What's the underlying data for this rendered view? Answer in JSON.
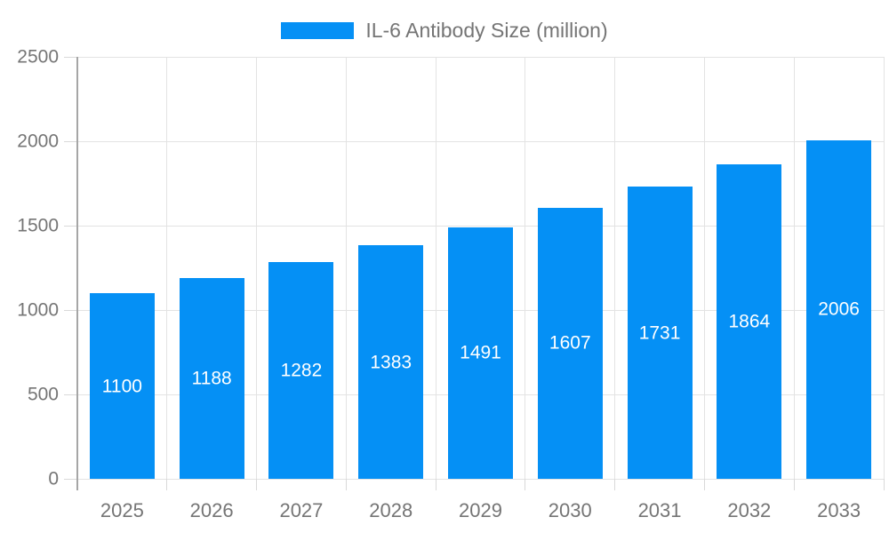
{
  "chart_data": {
    "type": "bar",
    "title": "IL-6 Antibody Size (million)",
    "legend_position": "top",
    "categories": [
      "2025",
      "2026",
      "2027",
      "2028",
      "2029",
      "2030",
      "2031",
      "2032",
      "2033"
    ],
    "values": [
      1100,
      1188,
      1282,
      1383,
      1491,
      1607,
      1731,
      1864,
      2006
    ],
    "value_labels": [
      "1100",
      "1188",
      "1282",
      "1383",
      "1491",
      "1607",
      "1731",
      "1864",
      "2006"
    ],
    "xlabel": "",
    "ylabel": "",
    "ylim": [
      0,
      2500
    ],
    "yticks": [
      0,
      500,
      1000,
      1500,
      2000,
      2500
    ],
    "ytick_labels": [
      "0",
      "500",
      "1000",
      "1500",
      "2000",
      "2500"
    ],
    "grid": true,
    "colors": {
      "bar": "#0590f5",
      "grid": "#e3e3e3",
      "axis": "#a6a6a6",
      "tick": "#d9d9d9",
      "text": "#757575",
      "value_label": "#ffffff",
      "background": "#ffffff"
    }
  }
}
